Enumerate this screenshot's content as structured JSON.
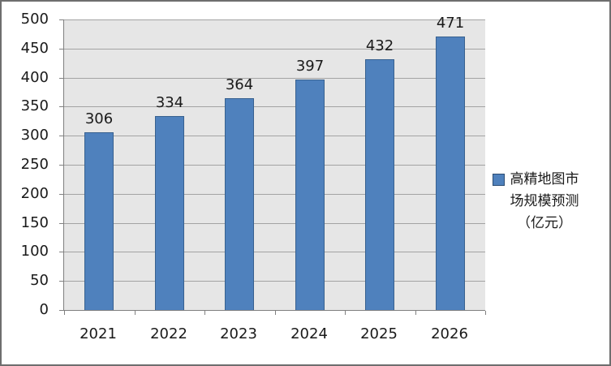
{
  "chart_data": {
    "type": "bar",
    "categories": [
      "2021",
      "2022",
      "2023",
      "2024",
      "2025",
      "2026"
    ],
    "values": [
      306,
      334,
      364,
      397,
      432,
      471
    ],
    "data_labels": [
      "306",
      "334",
      "364",
      "397",
      "432",
      "471"
    ],
    "yticks": [
      0,
      50,
      100,
      150,
      200,
      250,
      300,
      350,
      400,
      450,
      500
    ],
    "ylim": [
      0,
      500
    ],
    "xlabel": "",
    "ylabel": "",
    "title": "",
    "grid": true,
    "legend_position": "right",
    "legend": {
      "series_name": "高精地图市场规模预测（亿元）",
      "lines": [
        "高精地图市",
        "场规模预测",
        "（亿元）"
      ]
    },
    "colors": {
      "bar_fill": "#4f81bd",
      "bar_border": "#38618f",
      "legend_marker_fill": "#4f81bd",
      "legend_marker_border": "#2c4d73",
      "plot_bg": "#e6e6e6",
      "gridline": "#a3a3a3",
      "axis_line": "#808080",
      "text": "#1a1a1a",
      "frame_border": "#6e6e6e"
    }
  }
}
